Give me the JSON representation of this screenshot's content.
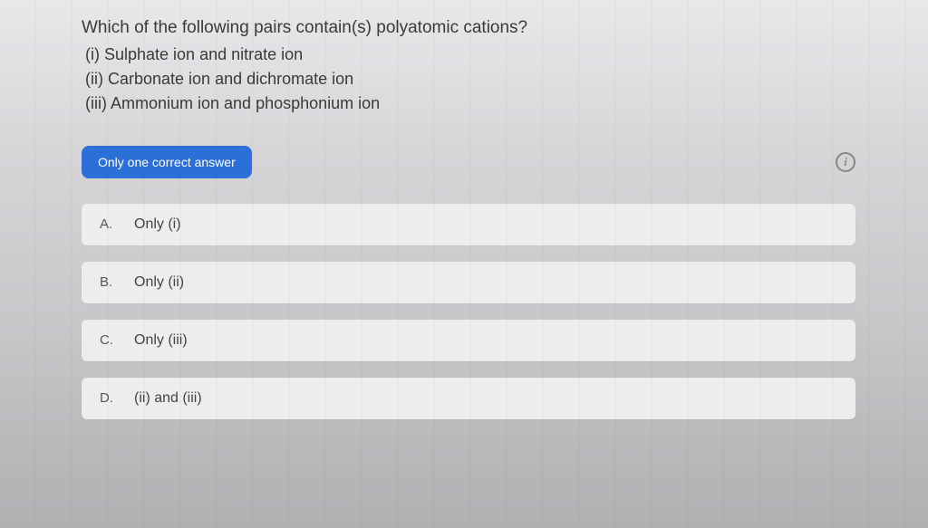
{
  "question": {
    "text": "Which of the following pairs contain(s) polyatomic cations?",
    "statements": [
      "(i) Sulphate ion and nitrate ion",
      "(ii) Carbonate ion and dichromate ion",
      "(iii) Ammonium ion and phosphonium ion"
    ]
  },
  "instruction": {
    "label": "Only one correct answer"
  },
  "options": [
    {
      "letter": "A.",
      "text": "Only (i)"
    },
    {
      "letter": "B.",
      "text": "Only (ii)"
    },
    {
      "letter": "C.",
      "text": "Only (iii)"
    },
    {
      "letter": "D.",
      "text": "(ii) and (iii)"
    }
  ],
  "styling": {
    "badge_bg": "#2b6fd8",
    "badge_color": "#ffffff",
    "option_bg": "#ededf0",
    "question_color": "#3a3a3a",
    "answer_text_color": "#444444",
    "body_width": 1024,
    "body_height": 583
  }
}
